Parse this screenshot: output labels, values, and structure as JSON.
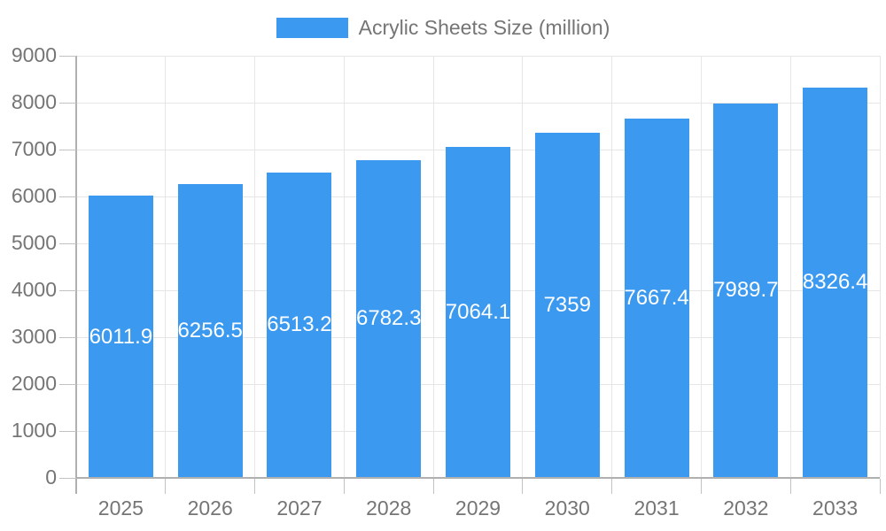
{
  "legend": {
    "label": "Acrylic Sheets Size (million)"
  },
  "chart_data": {
    "type": "bar",
    "categories": [
      "2025",
      "2026",
      "2027",
      "2028",
      "2029",
      "2030",
      "2031",
      "2032",
      "2033"
    ],
    "series": [
      {
        "name": "Acrylic Sheets Size (million)",
        "values": [
          6011.9,
          6256.5,
          6513.2,
          6782.3,
          7064.1,
          7359,
          7667.4,
          7989.7,
          8326.4
        ]
      }
    ],
    "value_labels": [
      "6011.9",
      "6256.5",
      "6513.2",
      "6782.3",
      "7064.1",
      "7359",
      "7667.4",
      "7989.7",
      "8326.4"
    ],
    "xlabel": "",
    "ylabel": "",
    "ylim": [
      0,
      9000
    ],
    "yticks": [
      0,
      1000,
      2000,
      3000,
      4000,
      5000,
      6000,
      7000,
      8000,
      9000
    ],
    "grid": true,
    "legend_position": "top",
    "colors": {
      "bar": "#3b99f0",
      "bar_value_text": "#ffffff",
      "gridline": "#e6e6e6",
      "axis": "#b0b0b0",
      "tick": "#c2c2c2",
      "tick_label": "#757575",
      "legend_text": "#757575"
    }
  }
}
